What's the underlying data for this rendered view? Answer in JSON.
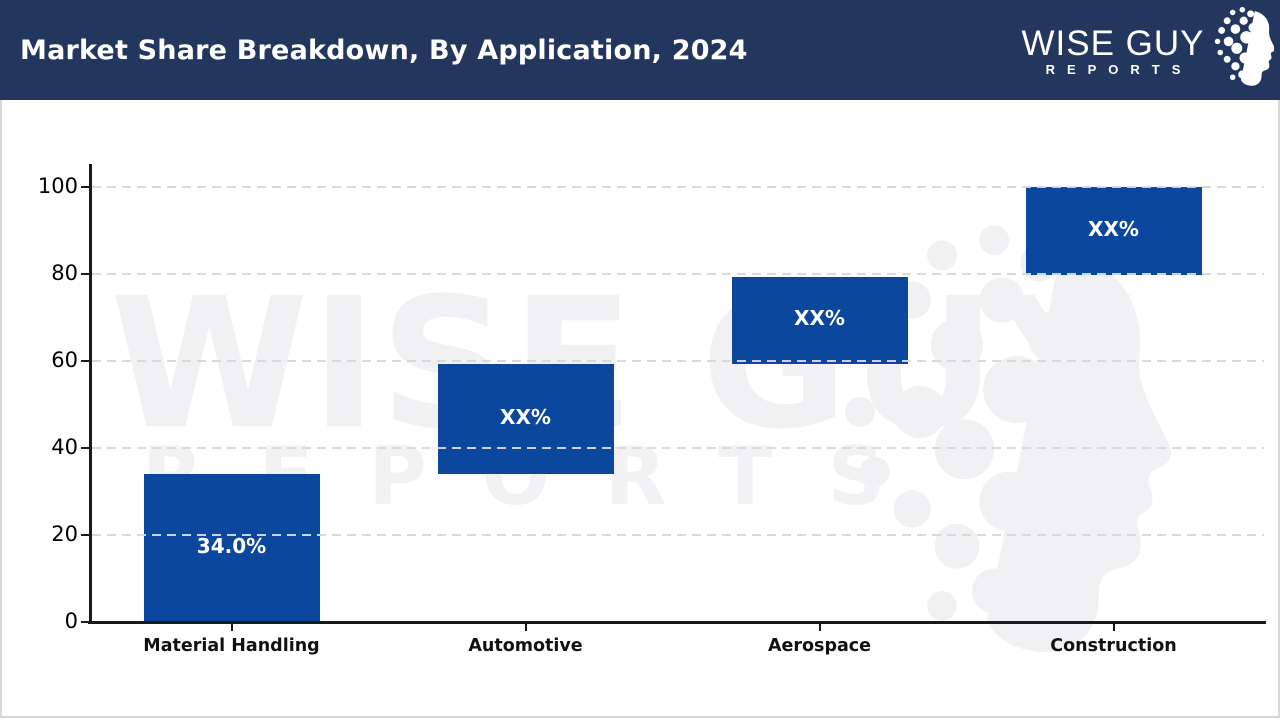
{
  "header": {
    "title": "Market Share Breakdown, By Application, 2024",
    "logo": {
      "line1": "WISE GUY",
      "line2": "REPORTS"
    }
  },
  "watermark": {
    "line1": "WISE GUY",
    "line2": "REPORTS"
  },
  "colors": {
    "header_bg": "#23365E",
    "bar": "#0B479D",
    "gridline": "#D9D9D9",
    "axis": "#1A1A1A",
    "watermark": "#F1F1F4",
    "bar_label": "#FFFFFF"
  },
  "chart_data": {
    "type": "bar",
    "subtype": "waterfall",
    "title": "Market Share Breakdown, By Application, 2024",
    "categories": [
      "Material Handling",
      "Automotive",
      "Aerospace",
      "Construction"
    ],
    "segments": [
      {
        "category": "Material Handling",
        "label": "34.0%",
        "start": 0,
        "end": 34
      },
      {
        "category": "Automotive",
        "label": "XX%",
        "start": 34,
        "end": 59.3
      },
      {
        "category": "Aerospace",
        "label": "XX%",
        "start": 59.3,
        "end": 79.4
      },
      {
        "category": "Construction",
        "label": "XX%",
        "start": 79.8,
        "end": 100
      }
    ],
    "values_masked_as": "XX%",
    "ylim": [
      0,
      100
    ],
    "yticks": [
      0,
      20,
      40,
      60,
      80,
      100
    ],
    "xlabel": "",
    "ylabel": "",
    "grid": "horizontal dashed at 20,40,60,80,100 drawn over bars",
    "legend": "none"
  }
}
